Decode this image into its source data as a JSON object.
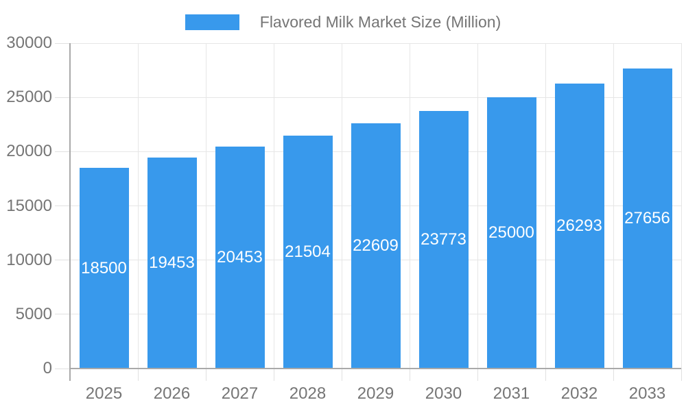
{
  "chart_data": {
    "type": "bar",
    "title": "Flavored Milk Market Size (Million)",
    "legend": {
      "label": "Flavored Milk Market Size (Million)",
      "position": "top-center"
    },
    "categories": [
      "2025",
      "2026",
      "2027",
      "2028",
      "2029",
      "2030",
      "2031",
      "2032",
      "2033"
    ],
    "series": [
      {
        "name": "Flavored Milk Market Size (Million)",
        "values": [
          18500,
          19453,
          20453,
          21504,
          22609,
          23773,
          25000,
          26293,
          27656
        ]
      }
    ],
    "xlabel": "",
    "ylabel": "",
    "ylim": [
      0,
      30000
    ],
    "yticks": [
      0,
      5000,
      10000,
      15000,
      20000,
      25000,
      30000
    ],
    "grid": "horizontal-and-vertical",
    "value_labels": "white-inside-bar-middle",
    "colors": {
      "bar": "#3899EC",
      "grid": "#e6e6e6",
      "tick": "#e0e0e0",
      "axis": "#a9a9a9",
      "tick_text": "#757575",
      "value_label_text": "#ffffff",
      "background": "#ffffff"
    }
  }
}
